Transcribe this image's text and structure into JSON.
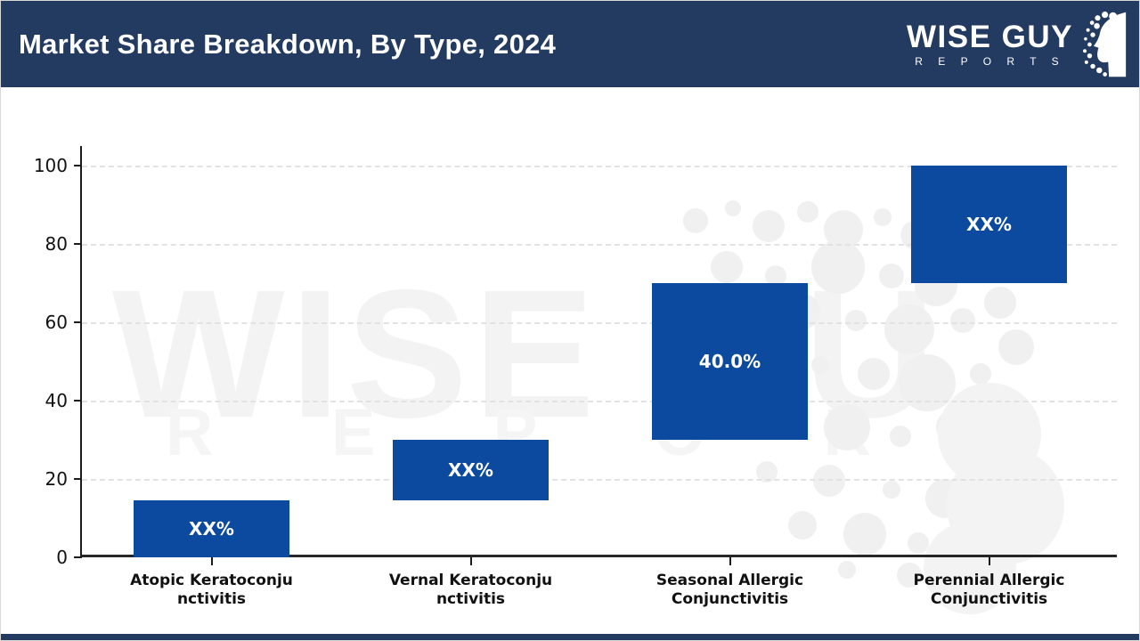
{
  "header": {
    "title": "Market Share Breakdown, By Type, 2024",
    "bg_color": "#233a61",
    "logo": {
      "name": "WISE GUY REPORTS",
      "line1": "WISE GUY",
      "line2": "R E P O R T S"
    }
  },
  "watermark": {
    "line1": "WISE GU",
    "line2": "R E P O R T"
  },
  "chart_data": {
    "type": "bar",
    "subtype": "floating-waterfall",
    "title": "Market Share Breakdown, By Type, 2024",
    "categories": [
      [
        "Atopic Keratoconju",
        "nctivitis"
      ],
      [
        "Vernal Keratoconju",
        "nctivitis"
      ],
      [
        "Seasonal Allergic",
        "Conjunctivitis"
      ],
      [
        "Perennial Allergic",
        "Conjunctivitis"
      ]
    ],
    "segments": [
      {
        "start": 0,
        "end": 14.5,
        "label": "XX%"
      },
      {
        "start": 14.5,
        "end": 30,
        "label": "XX%"
      },
      {
        "start": 30,
        "end": 70,
        "label": "40.0%"
      },
      {
        "start": 70,
        "end": 100,
        "label": "XX%"
      }
    ],
    "y_ticks": [
      0,
      20,
      40,
      60,
      80,
      100
    ],
    "ylim": [
      0,
      105
    ],
    "grid": "dashed-horizontal",
    "bar_color": "#0b4a9e",
    "bar_label_color": "#ffffff",
    "axis_color": "#1c1c1c"
  },
  "footer": {
    "bar_color": "#233a61"
  }
}
